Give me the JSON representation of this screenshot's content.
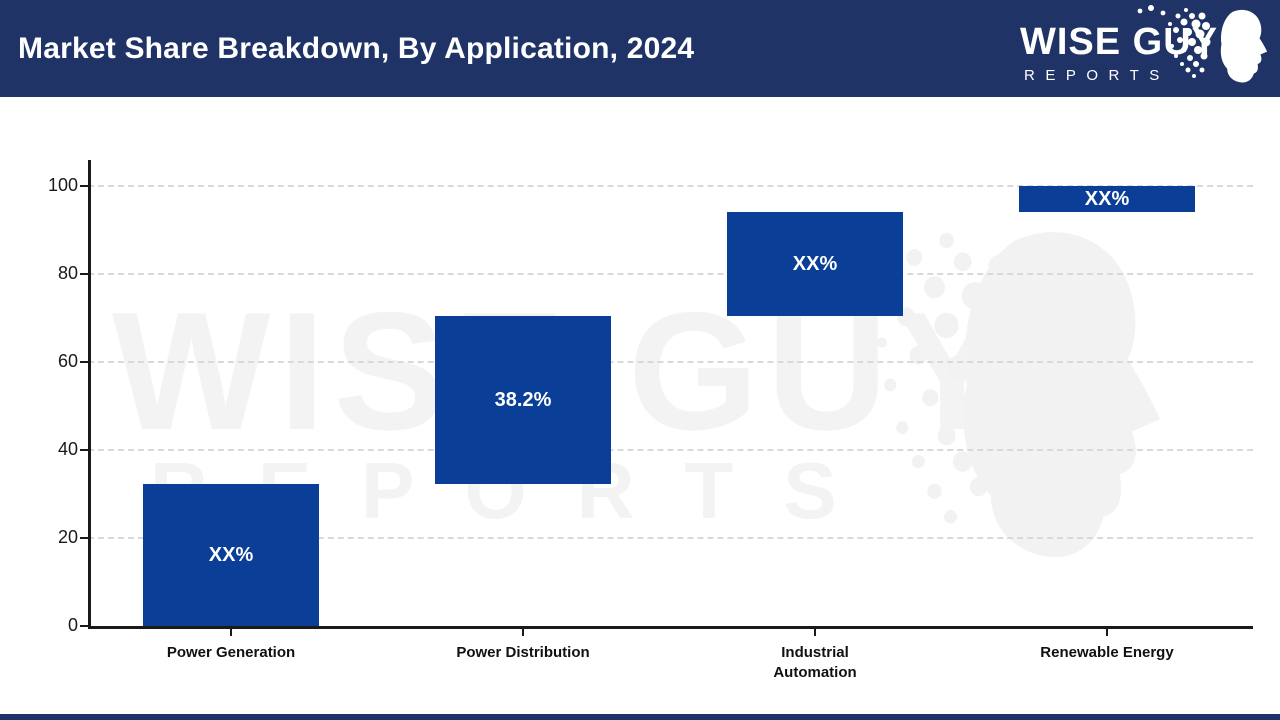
{
  "header": {
    "title": "Market Share Breakdown, By Application, 2024"
  },
  "brand": {
    "name_line1": "WISE GUY",
    "name_line2": "REPORTS",
    "icon": "head-profile-dots-icon"
  },
  "watermark": {
    "line1": "WISE GUY",
    "line2": "REPORTS",
    "icon": "head-profile-dots-icon"
  },
  "colors": {
    "header_bg": "#1f3366",
    "footer_bg": "#1f3366",
    "bar": "#0b3e96",
    "bar_label": "#ffffff",
    "gridline": "#d9d9d9",
    "axis": "#1a1a1a",
    "watermark": "#f3f3f3"
  },
  "chart_data": {
    "type": "bar",
    "variant": "waterfall-breakdown",
    "title": "Market Share Breakdown, By Application, 2024",
    "categories": [
      "Power Generation",
      "Power Distribution",
      "Industrial Automation",
      "Renewable Energy"
    ],
    "category_label_lines": [
      [
        "Power Generation"
      ],
      [
        "Power Distribution"
      ],
      [
        "Industrial",
        "Automation"
      ],
      [
        "Renewable Energy"
      ]
    ],
    "segments": [
      {
        "category": "Power Generation",
        "start": 0,
        "end": 32.3,
        "value": 32.3,
        "label": "XX%"
      },
      {
        "category": "Power Distribution",
        "start": 32.3,
        "end": 70.5,
        "value": 38.2,
        "label": "38.2%"
      },
      {
        "category": "Industrial Automation",
        "start": 70.5,
        "end": 94.1,
        "value": 23.6,
        "label": "XX%"
      },
      {
        "category": "Renewable Energy",
        "start": 94.1,
        "end": 100,
        "value": 5.9,
        "label": "XX%"
      }
    ],
    "xlabel": "",
    "ylabel": "",
    "ylim": [
      0,
      100
    ],
    "yticks": [
      0,
      20,
      40,
      60,
      80,
      100
    ],
    "grid": "horizontal-dashed",
    "legend": "none",
    "bar_color": "#0b3e96",
    "label_color": "#ffffff"
  }
}
